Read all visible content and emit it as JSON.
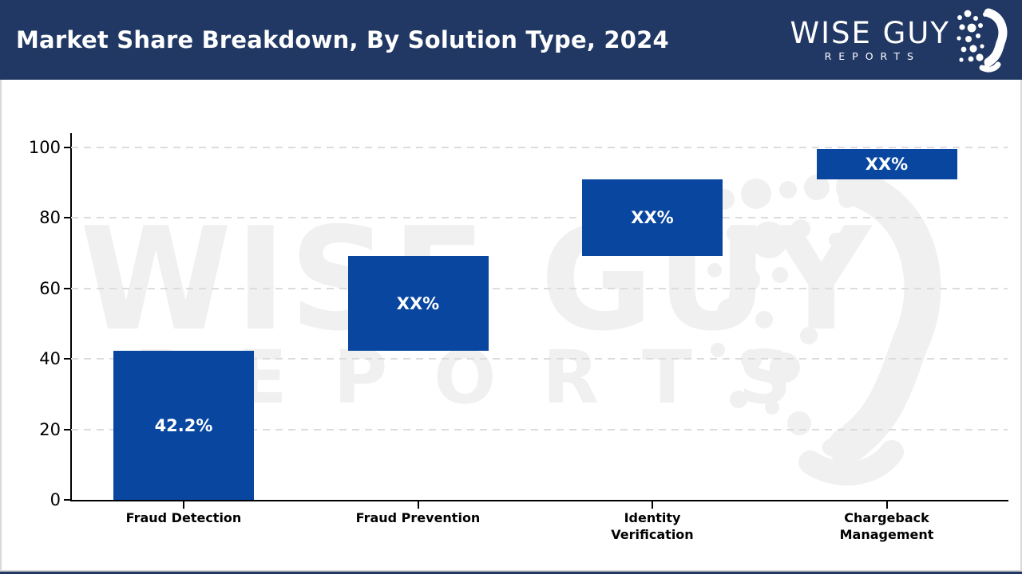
{
  "page": {
    "background": "#ffffff",
    "frame_color": "#d9d9d9"
  },
  "header": {
    "bg_color": "#213864",
    "title": "Market Share Breakdown, By Solution Type, 2024",
    "logo": {
      "line1": "WISE GUY",
      "line2": "REPORTS"
    }
  },
  "watermark": {
    "line1": "WISE GUY",
    "line2": "REPORTS"
  },
  "chart_data": {
    "type": "bar",
    "subtype": "waterfall",
    "title": "Market Share Breakdown, By Solution Type, 2024",
    "categories": [
      "Fraud Detection",
      "Fraud Prevention",
      "Identity Verification",
      "Chargeback Management"
    ],
    "category_lines": [
      [
        "Fraud Detection"
      ],
      [
        "Fraud Prevention"
      ],
      [
        "Identity",
        "Verification"
      ],
      [
        "Chargeback",
        "Management"
      ]
    ],
    "segments": [
      {
        "category": "Fraud Detection",
        "start": 0,
        "end": 42.2,
        "label": "42.2%"
      },
      {
        "category": "Fraud Prevention",
        "start": 42.2,
        "end": 69.3,
        "label": "XX%"
      },
      {
        "category": "Identity Verification",
        "start": 69.3,
        "end": 91.0,
        "label": "XX%"
      },
      {
        "category": "Chargeback Management",
        "start": 91.0,
        "end": 99.5,
        "label": "XX%"
      }
    ],
    "yticks": [
      0,
      20,
      40,
      60,
      80,
      100
    ],
    "ylim": [
      0,
      103.5
    ],
    "xlabel": "",
    "ylabel": "",
    "legend": "none",
    "grid": "horizontal-dashed",
    "gridline_color": "#dcdcdc",
    "bar_color": "#0846a0",
    "bar_label_color": "#ffffff",
    "axis_color": "#000000"
  }
}
